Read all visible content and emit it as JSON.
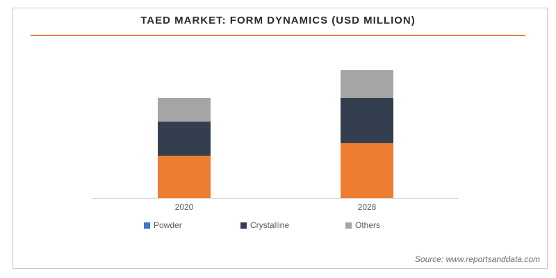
{
  "header": {
    "title": "TAED MARKET: FORM DYNAMICS (USD MILLION)"
  },
  "chart_data": {
    "type": "bar",
    "stacked": true,
    "title": "TAED MARKET: FORM DYNAMICS (USD MILLION)",
    "categories": [
      "2020",
      "2028"
    ],
    "series": [
      {
        "name": "Powder",
        "values": [
          61,
          79
        ],
        "bar_color": "#ED7D31",
        "legend_color": "#4472C4"
      },
      {
        "name": "Crystalline",
        "values": [
          49,
          65
        ],
        "bar_color": "#333F4F",
        "legend_color": "#333F4F"
      },
      {
        "name": "Others",
        "values": [
          34,
          40
        ],
        "bar_color": "#A5A5A5",
        "legend_color": "#A5A5A5"
      }
    ],
    "xlabel": "",
    "ylabel": "",
    "value_axis_visible": false,
    "units": "USD Million (no value axis shown; values are relative heights)",
    "legend_position": "bottom",
    "grid": false
  },
  "footer": {
    "source": "Source: www.reportsanddata.com"
  },
  "colors": {
    "accent_divider": "#ED7D31",
    "frame_border": "#C6C6C6",
    "axis_line": "#D8D8D8",
    "title_text": "#2B2B33",
    "label_text": "#595959",
    "source_text": "#6E6E78",
    "background": "#FFFFFF"
  }
}
